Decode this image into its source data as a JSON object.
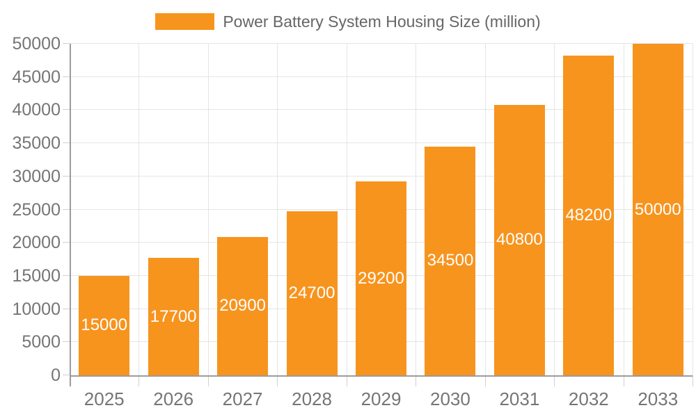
{
  "chart_data": {
    "type": "bar",
    "title": "Power Battery System Housing Size (million)",
    "categories": [
      "2025",
      "2026",
      "2027",
      "2028",
      "2029",
      "2030",
      "2031",
      "2032",
      "2033"
    ],
    "values": [
      15000,
      17700,
      20900,
      24700,
      29200,
      34500,
      40800,
      48200,
      50000
    ],
    "bar_labels": [
      "15000",
      "17700",
      "20900",
      "24700",
      "29200",
      "34500",
      "40800",
      "48200",
      "50000"
    ],
    "xlabel": "",
    "ylabel": "",
    "ylim": [
      0,
      50000
    ],
    "yticks": [
      0,
      5000,
      10000,
      15000,
      20000,
      25000,
      30000,
      35000,
      40000,
      45000,
      50000
    ],
    "ytick_step": 5000,
    "grid": true,
    "legend_position": "top-center",
    "bar_labels_visible": true,
    "colors": {
      "bar": "#F7941E",
      "bar_label": "#FFFFFF",
      "axis_text": "#757575",
      "legend_text": "#666666",
      "grid_line": "#E5E5E5",
      "tick_line": "#D0D0D0",
      "axis_line": "#9B9B9B",
      "background": "#FFFFFF"
    }
  }
}
